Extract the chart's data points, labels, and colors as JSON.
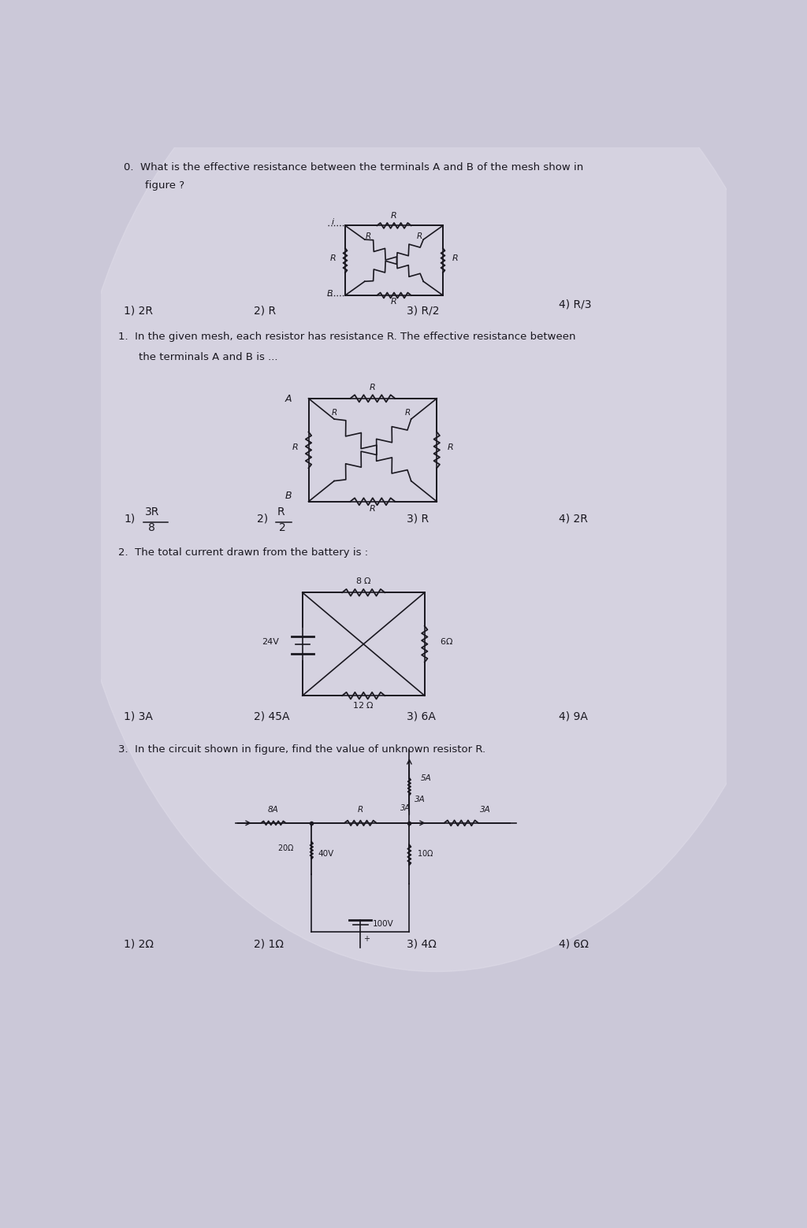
{
  "bg_color": "#cbc8d8",
  "text_color": "#1a1820",
  "page_width": 10.24,
  "page_height": 15.59,
  "q0_text1": "0.  What is the effective resistance between the terminals A and B of the mesh show in",
  "q0_text2": "figure ?",
  "q0_opts": [
    "1) 2R",
    "2) R",
    "3) R/2",
    "4) R/3"
  ],
  "q1_text1": "1.  In the given mesh, each resistor has resistance R. The effective resistance between",
  "q1_text2": "the terminals A and B is ...",
  "q1_opt3": "3) R",
  "q1_opt4": "4) 2R",
  "q2_text": "2.  The total current drawn from the battery is :",
  "q2_opts": [
    "1) 3A",
    "2) 45A",
    "3) 6A",
    "4) 9A"
  ],
  "q3_text": "3.  In the circuit shown in figure, find the value of unknown resistor R.",
  "q3_opts": [
    "1) 2Ω",
    "2) 1Ω",
    "3) 4Ω",
    "4) 6Ω"
  ]
}
